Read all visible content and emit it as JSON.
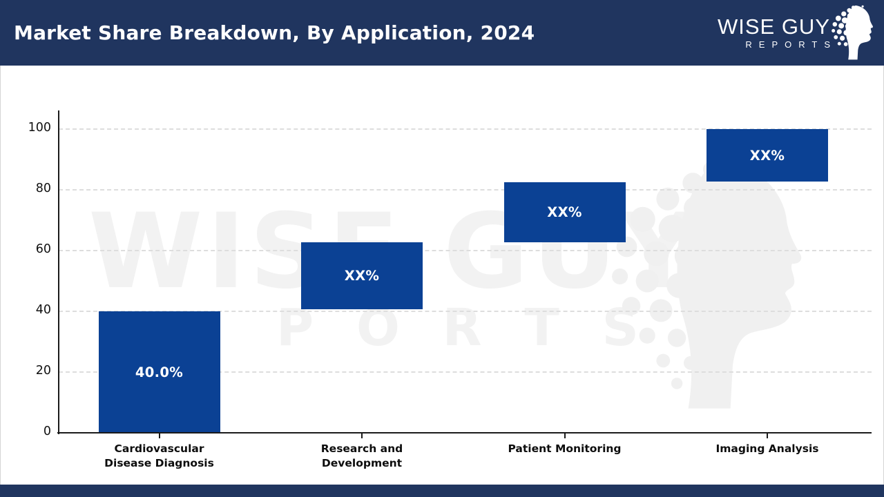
{
  "header": {
    "title": "Market Share Breakdown, By Application, 2024",
    "background_color": "#20355f",
    "text_color": "#ffffff",
    "logo": {
      "line1": "WISE GUY",
      "line2": "REPORTS"
    }
  },
  "watermark": {
    "line1": "WISE GUY",
    "line2": "P O R T S",
    "color": "#f2f2f2"
  },
  "chart_data": {
    "type": "bar",
    "subtype": "waterfall",
    "title": "Market Share Breakdown, By Application, 2024",
    "xlabel": "",
    "ylabel": "",
    "ylim": [
      0,
      100
    ],
    "yticks": [
      0,
      20,
      40,
      60,
      80,
      100
    ],
    "grid": true,
    "gridline_color": "#dddddd",
    "bar_color": "#0b4194",
    "value_label_color": "#ffffff",
    "categories": [
      [
        "Cardiovascular",
        "Disease Diagnosis"
      ],
      [
        "Research and",
        "Development"
      ],
      [
        "Patient Monitoring"
      ],
      [
        "Imaging Analysis"
      ]
    ],
    "segments": [
      {
        "start": 0,
        "end": 40,
        "label": "40.0%"
      },
      {
        "start": 40.7,
        "end": 62.7,
        "label": "XX%"
      },
      {
        "start": 62.7,
        "end": 82.5,
        "label": "XX%"
      },
      {
        "start": 82.7,
        "end": 100,
        "label": "XX%"
      }
    ]
  },
  "footer": {
    "background_color": "#20355f"
  }
}
